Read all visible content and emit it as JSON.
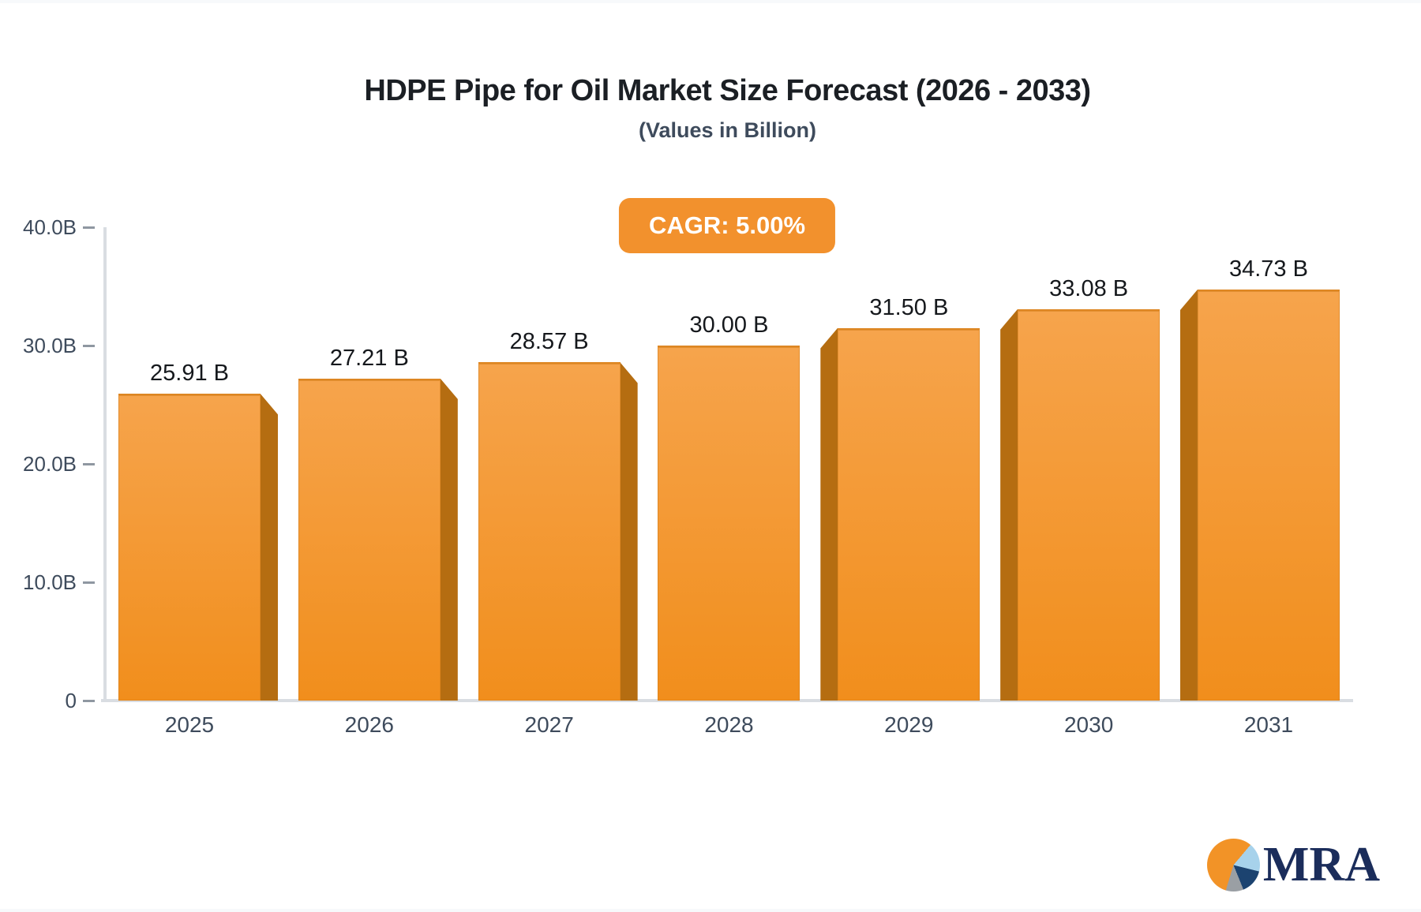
{
  "chart_data": {
    "type": "bar",
    "title": "HDPE Pipe for Oil Market Size Forecast (2026 - 2033)",
    "subtitle": "(Values in Billion)",
    "annotations": {
      "cagr_badge": "CAGR: 5.00%"
    },
    "categories": [
      "2025",
      "2026",
      "2027",
      "2028",
      "2029",
      "2030",
      "2031"
    ],
    "values": [
      25.91,
      27.21,
      28.57,
      30.0,
      31.5,
      33.08,
      34.73
    ],
    "value_labels": [
      "25.91 B",
      "27.21 B",
      "28.57 B",
      "30.00 B",
      "31.50 B",
      "33.08 B",
      "34.73 B"
    ],
    "ylim": [
      0,
      40
    ],
    "y_ticks": [
      {
        "label": "40.0B",
        "value": 40
      },
      {
        "label": "30.0B",
        "value": 30
      },
      {
        "label": "20.0B",
        "value": 20
      },
      {
        "label": "10.0B",
        "value": 10
      },
      {
        "label": "0",
        "value": 0
      }
    ],
    "grid": false,
    "legend": "none",
    "bar_style": "3d-perspective",
    "colors": {
      "bar_face_top": "#f6a44c",
      "bar_face_bottom": "#f18e1c",
      "bar_side": "#b56d11",
      "badge_bg": "#f2912d",
      "badge_text": "#ffffff",
      "axis_line": "#d9dde2",
      "tick_mark": "#8f97a1",
      "axis_label": "#3e4b5c",
      "value_label": "#15181c",
      "title_text": "#1b1f24"
    }
  },
  "logo": {
    "text": "MRA",
    "icon": "pie-chart-icon",
    "pie_slice_colors": [
      "#f29327",
      "#a7d2eb",
      "#1c4370",
      "#9a9fa4"
    ]
  }
}
